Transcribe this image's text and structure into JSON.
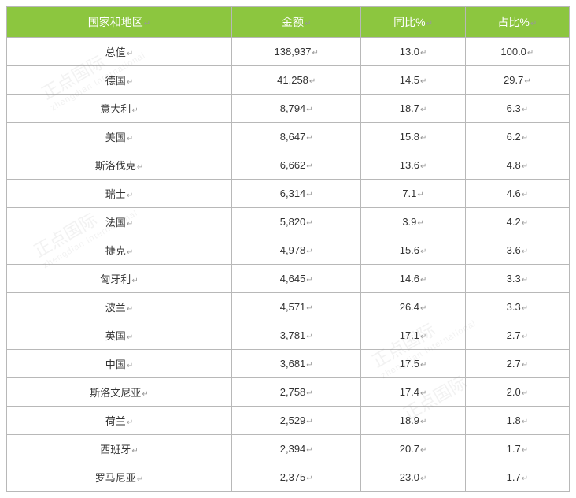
{
  "table": {
    "header_bg": "#8cc63f",
    "header_text_color": "#ffffff",
    "cell_bg": "#ffffff",
    "cell_text_color": "#333333",
    "border_color": "#b8b8b8",
    "header_fontsize": 14,
    "cell_fontsize": 13,
    "cell_mark": "↵",
    "columns": [
      {
        "key": "region",
        "label": "国家和地区",
        "width": "40%"
      },
      {
        "key": "amount",
        "label": "金额",
        "width": "23%"
      },
      {
        "key": "yoy",
        "label": "同比%",
        "width": "18.5%"
      },
      {
        "key": "share",
        "label": "占比%",
        "width": "18.5%"
      }
    ],
    "rows": [
      {
        "region": "总值",
        "amount": "138,937",
        "yoy": "13.0",
        "share": "100.0"
      },
      {
        "region": "德国",
        "amount": "41,258",
        "yoy": "14.5",
        "share": "29.7"
      },
      {
        "region": "意大利",
        "amount": "8,794",
        "yoy": "18.7",
        "share": "6.3"
      },
      {
        "region": "美国",
        "amount": "8,647",
        "yoy": "15.8",
        "share": "6.2"
      },
      {
        "region": "斯洛伐克",
        "amount": "6,662",
        "yoy": "13.6",
        "share": "4.8"
      },
      {
        "region": "瑞士",
        "amount": "6,314",
        "yoy": "7.1",
        "share": "4.6"
      },
      {
        "region": "法国",
        "amount": "5,820",
        "yoy": "3.9",
        "share": "4.2"
      },
      {
        "region": "捷克",
        "amount": "4,978",
        "yoy": "15.6",
        "share": "3.6"
      },
      {
        "region": "匈牙利",
        "amount": "4,645",
        "yoy": "14.6",
        "share": "3.3"
      },
      {
        "region": "波兰",
        "amount": "4,571",
        "yoy": "26.4",
        "share": "3.3"
      },
      {
        "region": "英国",
        "amount": "3,781",
        "yoy": "17.1",
        "share": "2.7"
      },
      {
        "region": "中国",
        "amount": "3,681",
        "yoy": "17.5",
        "share": "2.7"
      },
      {
        "region": "斯洛文尼亚",
        "amount": "2,758",
        "yoy": "17.4",
        "share": "2.0"
      },
      {
        "region": "荷兰",
        "amount": "2,529",
        "yoy": "18.9",
        "share": "1.8"
      },
      {
        "region": "西班牙",
        "amount": "2,394",
        "yoy": "20.7",
        "share": "1.7"
      },
      {
        "region": "罗马尼亚",
        "amount": "2,375",
        "yoy": "23.0",
        "share": "1.7"
      }
    ]
  },
  "watermark": {
    "main": "正点国际",
    "sub": "zhengdian International",
    "color": "rgba(150,150,150,0.12)"
  }
}
